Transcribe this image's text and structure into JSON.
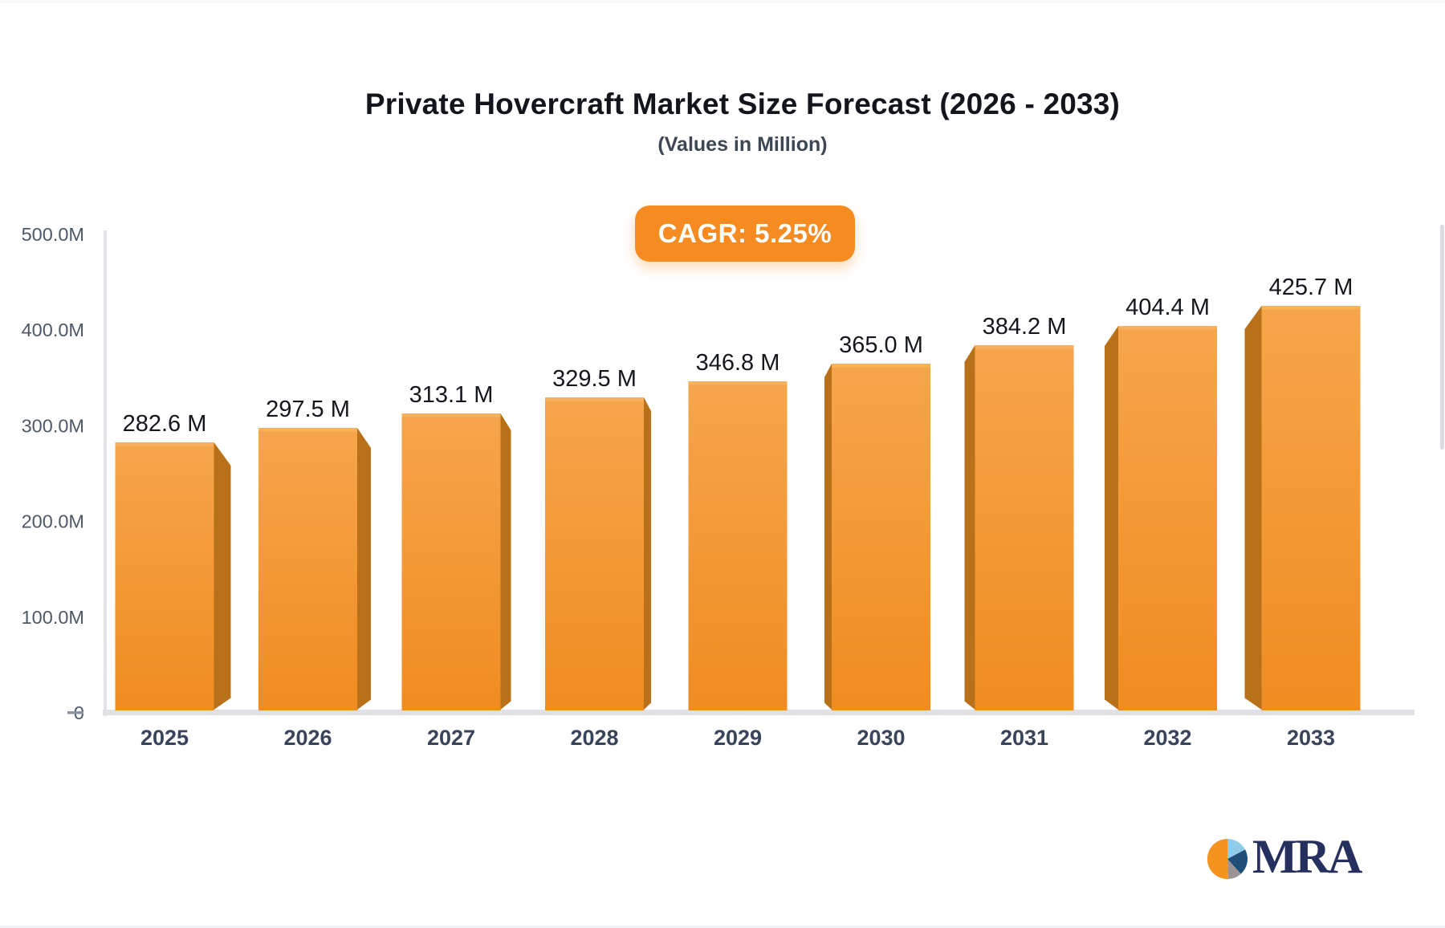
{
  "header": {
    "title": "Private Hovercraft Market Size Forecast (2026 - 2033)",
    "subtitle": "(Values in Million)"
  },
  "badge": {
    "label": "CAGR: 5.25%"
  },
  "chart_data": {
    "type": "bar",
    "title": "Private Hovercraft Market Size Forecast (2026 - 2033)",
    "subtitle": "(Values in Million)",
    "annotation": "CAGR: 5.25%",
    "categories": [
      "2025",
      "2026",
      "2027",
      "2028",
      "2029",
      "2030",
      "2031",
      "2032",
      "2033"
    ],
    "values": [
      282.6,
      297.5,
      313.1,
      329.5,
      346.8,
      365.0,
      384.2,
      404.4,
      425.7
    ],
    "value_labels": [
      "282.6 M",
      "297.5 M",
      "313.1 M",
      "329.5 M",
      "346.8 M",
      "365.0 M",
      "384.2 M",
      "404.4 M",
      "425.7 M"
    ],
    "xlabel": "",
    "ylabel": "",
    "ylim": [
      0,
      500
    ],
    "ytick_step": 100,
    "ytick_labels": [
      "0",
      "100.0M",
      "200.0M",
      "300.0M",
      "400.0M",
      "500.0M"
    ],
    "grid": false,
    "legend": "none",
    "colors": {
      "bar_gradient_top": "#F6A54C",
      "bar_gradient_bottom": "#F08C20",
      "bar_top_highlight": "#F8B05A",
      "bar_side_face": "#B87119",
      "axis_line": "#E4E4E8",
      "baseline": "#E1E1E5",
      "tick_dash": "#8A94A2",
      "ytick_text": "#4E5968",
      "xtick_text": "#39445A",
      "value_text": "#14171C"
    }
  },
  "logo": {
    "text": "MRA",
    "icon": "pie-chart",
    "colors": {
      "orange": "#F6921E",
      "light_blue": "#92CBE5",
      "navy": "#1F4E79",
      "gray": "#9B9496",
      "text_navy": "#26305E"
    }
  }
}
